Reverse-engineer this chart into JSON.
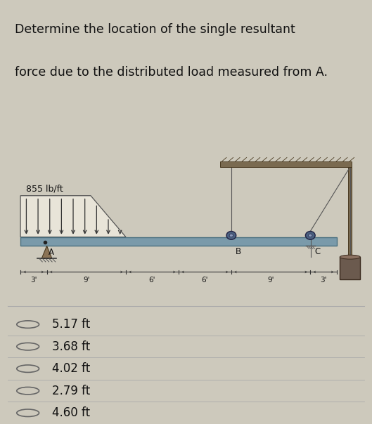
{
  "title_line1": "Determine the location of the single resultant",
  "title_line2": "force due to the distributed load measured from A.",
  "load_label": "855 lb/ft",
  "choices": [
    "5.17 ft",
    "3.68 ft",
    "4.02 ft",
    "2.79 ft",
    "4.60 ft"
  ],
  "dim_labels": [
    "3'",
    "9'",
    "6'",
    "6'",
    "9'",
    "3'"
  ],
  "bg_color": "#cdc9bc",
  "beam_color": "#7a9aaa",
  "beam_edge_color": "#4a7080",
  "load_fill": "#e8e4d8",
  "load_edge": "#555555",
  "support_color": "#8B7355",
  "text_color": "#111111",
  "divider_color": "#aaaaaa",
  "rope_color": "#555555",
  "pulley_color": "#4a6080",
  "weight_color": "#6b5a4e",
  "ceiling_color": "#7a6a50"
}
